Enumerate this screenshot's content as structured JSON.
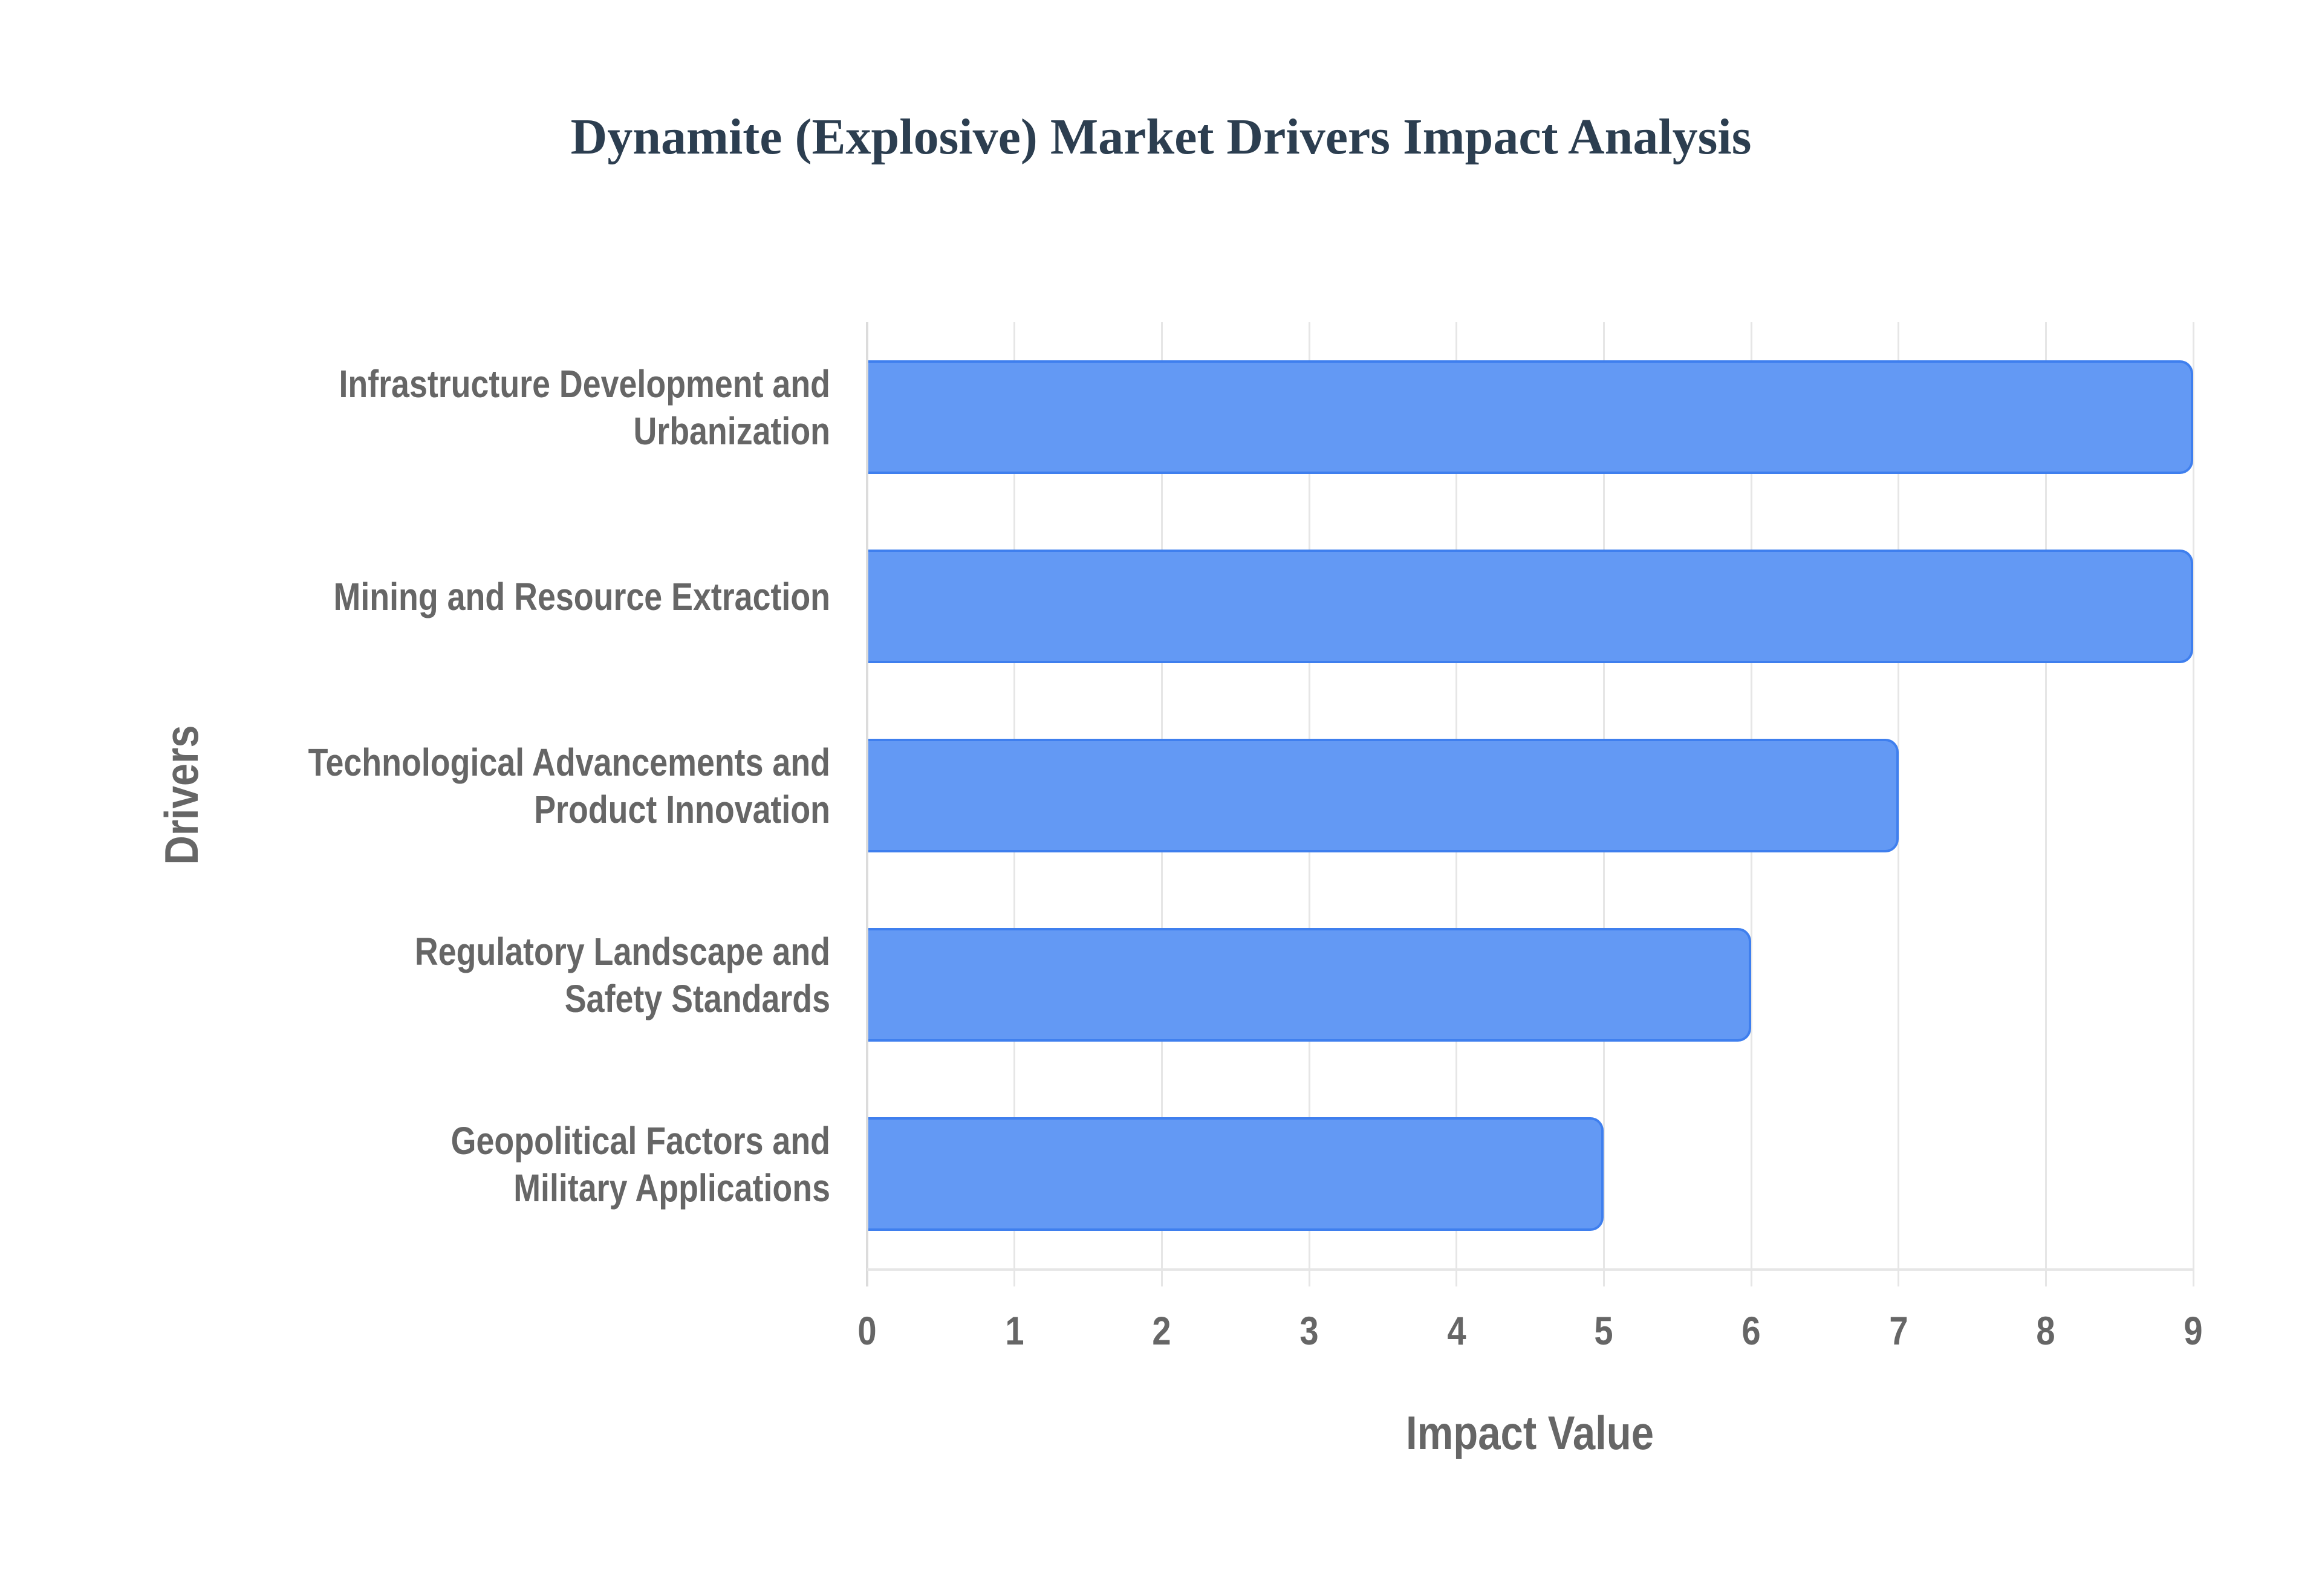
{
  "title": "Dynamite (Explosive) Market Drivers Impact Analysis",
  "colors": {
    "bar_fill": "#6399f4",
    "bar_border": "#3f7fee",
    "title": "#2c3e50",
    "axis_text": "#666666",
    "grid": "#e6e6e6"
  },
  "axes": {
    "x_title": "Impact Value",
    "y_title": "Drivers",
    "x_ticks": [
      "0",
      "1",
      "2",
      "3",
      "4",
      "5",
      "6",
      "7",
      "8",
      "9"
    ]
  },
  "drivers": [
    {
      "label_lines": [
        "Infrastructure Development and",
        "Urbanization"
      ],
      "value": 9
    },
    {
      "label_lines": [
        "Mining and Resource Extraction"
      ],
      "value": 9
    },
    {
      "label_lines": [
        "Technological Advancements and",
        "Product Innovation"
      ],
      "value": 7
    },
    {
      "label_lines": [
        "Regulatory Landscape and",
        "Safety Standards"
      ],
      "value": 6
    },
    {
      "label_lines": [
        "Geopolitical Factors and",
        "Military Applications"
      ],
      "value": 5
    }
  ],
  "chart_data": {
    "type": "bar",
    "orientation": "horizontal",
    "title": "Dynamite (Explosive) Market Drivers Impact Analysis",
    "categories": [
      "Infrastructure Development and Urbanization",
      "Mining and Resource Extraction",
      "Technological Advancements and Product Innovation",
      "Regulatory Landscape and Safety Standards",
      "Geopolitical Factors and Military Applications"
    ],
    "values": [
      9,
      9,
      7,
      6,
      5
    ],
    "xlabel": "Impact Value",
    "ylabel": "Drivers",
    "xlim": [
      0,
      9
    ],
    "x_ticks": [
      0,
      1,
      2,
      3,
      4,
      5,
      6,
      7,
      8,
      9
    ],
    "grid": {
      "vertical": true,
      "horizontal": false
    },
    "legend": null
  }
}
